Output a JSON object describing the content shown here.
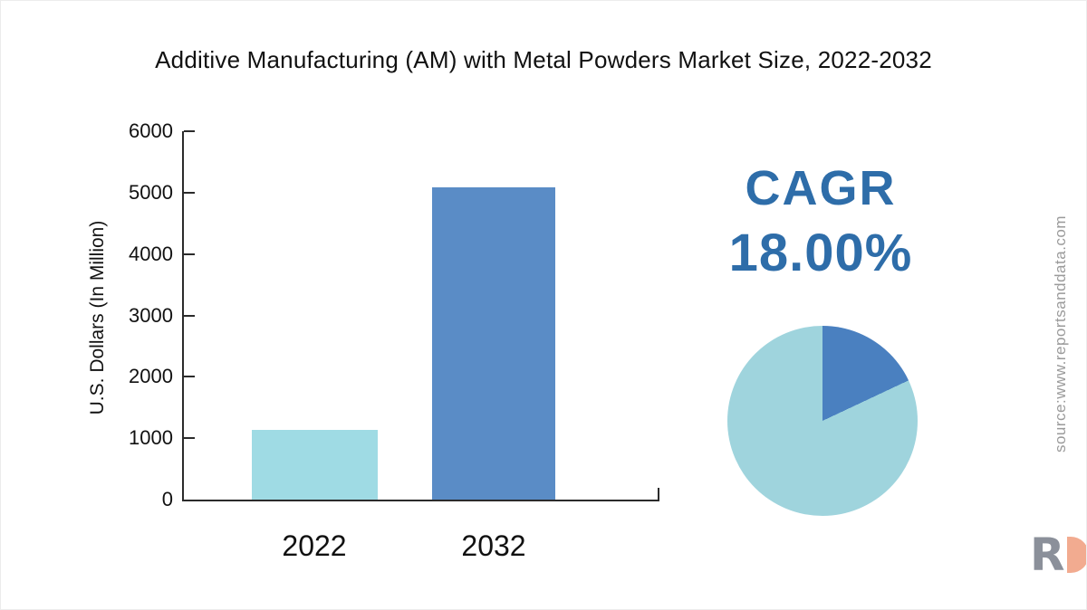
{
  "page": {
    "title": "Additive Manufacturing (AM) with Metal Powders Market Size, 2022-2032",
    "source_note": "source:www.reportsanddata.com",
    "logo_letter": "R"
  },
  "cagr": {
    "label": "CAGR",
    "value": "18.00%",
    "percent": 18
  },
  "colors": {
    "bar_2022": "#9fdbe4",
    "bar_2032": "#5a8cc6",
    "pie_cagr_slice": "#4a80c0",
    "pie_remainder": "#9fd4dd",
    "cagr_text": "#2e6da9",
    "axis": "#2b2b2b",
    "title_text": "#111111",
    "source_text": "#9a9a9a",
    "logo_r": "#8b909a",
    "logo_d": "#f2ab90"
  },
  "chart_data": [
    {
      "type": "bar",
      "title": "Additive Manufacturing (AM) with Metal Powders Market Size, 2022-2032",
      "categories": [
        "2022",
        "2032"
      ],
      "values": [
        1140,
        5090
      ],
      "xlabel": "",
      "ylabel": "U.S. Dollars (In Million)",
      "ylim": [
        0,
        6000
      ],
      "yticks": [
        0,
        1000,
        2000,
        3000,
        4000,
        5000,
        6000
      ],
      "grid": false,
      "legend": "none",
      "bar_colors": [
        "#9fdbe4",
        "#5a8cc6"
      ]
    },
    {
      "type": "pie",
      "title": "CAGR 18.00%",
      "slices": [
        {
          "label": "CAGR slice",
          "value": 18,
          "color": "#4a80c0"
        },
        {
          "label": "remainder",
          "value": 82,
          "color": "#9fd4dd"
        }
      ],
      "start_angle_deg": 0,
      "direction": "clockwise",
      "legend": "none"
    }
  ]
}
